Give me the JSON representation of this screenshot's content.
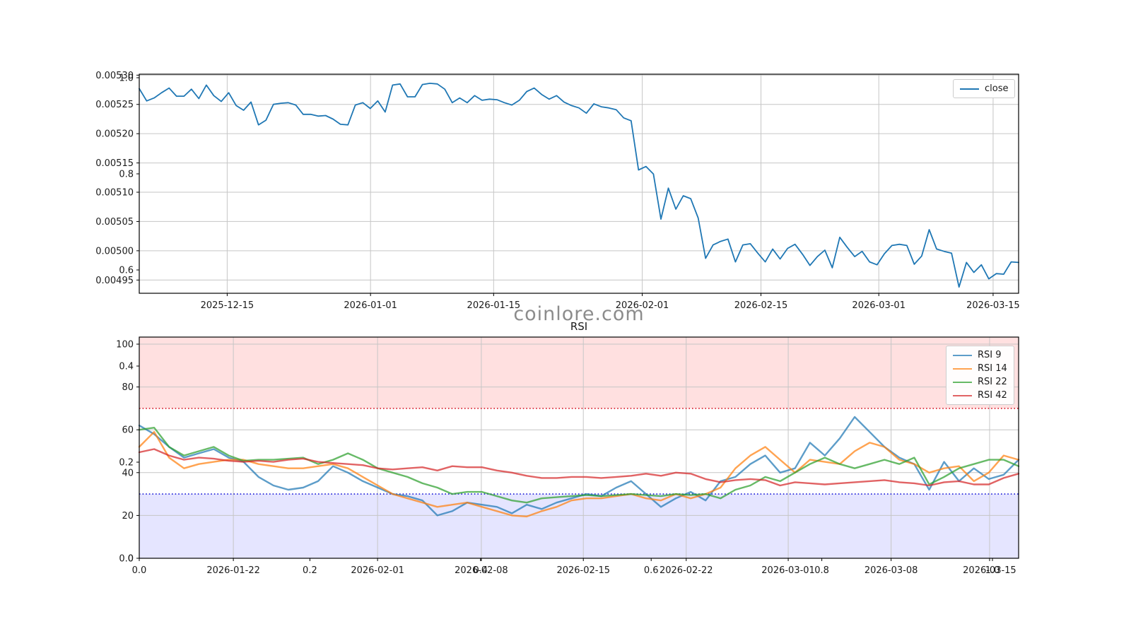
{
  "watermark": "coinlore.com",
  "overlay_axis": {
    "x_tick_labels": [
      "0.0",
      "0.2",
      "0.4",
      "0.6",
      "0.8",
      "1.0"
    ],
    "y_tick_labels": [
      "1.0",
      "0.8",
      "0.6",
      "0.4",
      "0.2",
      "0.0"
    ]
  },
  "chart_data": [
    {
      "type": "line",
      "name": "price-chart",
      "title": "",
      "x_start": "2025-12-05",
      "x_end": "2026-03-15",
      "grid": true,
      "legend_position": "upper right",
      "x_ticks": [
        {
          "label": "2025-12-15",
          "f": 0.1
        },
        {
          "label": "2026-01-01",
          "f": 0.263
        },
        {
          "label": "2026-01-15",
          "f": 0.403
        },
        {
          "label": "2026-02-01",
          "f": 0.572
        },
        {
          "label": "2026-02-15",
          "f": 0.707
        },
        {
          "label": "2026-03-01",
          "f": 0.841
        },
        {
          "label": "2026-03-15",
          "f": 0.971
        }
      ],
      "y_ticks": [
        {
          "label": "0.00530",
          "v": 0.0053
        },
        {
          "label": "0.00525",
          "v": 0.00525
        },
        {
          "label": "0.00520",
          "v": 0.0052
        },
        {
          "label": "0.00515",
          "v": 0.00515
        },
        {
          "label": "0.00510",
          "v": 0.0051
        },
        {
          "label": "0.00505",
          "v": 0.00505
        },
        {
          "label": "0.00500",
          "v": 0.005
        },
        {
          "label": "0.00495",
          "v": 0.00495
        }
      ],
      "ylim": [
        0.0049274,
        0.0053016
      ],
      "series": [
        {
          "name": "close",
          "color": "#1f77b4",
          "width": 1.8,
          "values": [
            0.005277,
            0.005256,
            0.005261,
            0.00527,
            0.005278,
            0.005264,
            0.005264,
            0.005276,
            0.00526,
            0.005283,
            0.005265,
            0.005255,
            0.00527,
            0.005248,
            0.00524,
            0.005254,
            0.005215,
            0.005223,
            0.00525,
            0.005252,
            0.005253,
            0.005249,
            0.005233,
            0.005233,
            0.00523,
            0.005231,
            0.005225,
            0.005216,
            0.005215,
            0.005249,
            0.005253,
            0.005243,
            0.005256,
            0.005237,
            0.005283,
            0.005285,
            0.005263,
            0.005263,
            0.005284,
            0.005286,
            0.005285,
            0.005276,
            0.005253,
            0.005261,
            0.005253,
            0.005265,
            0.005257,
            0.005259,
            0.005258,
            0.005253,
            0.005249,
            0.005257,
            0.005272,
            0.005278,
            0.005267,
            0.005259,
            0.005265,
            0.005254,
            0.005248,
            0.005244,
            0.005235,
            0.005251,
            0.005246,
            0.005244,
            0.005241,
            0.005227,
            0.005222,
            0.005138,
            0.005144,
            0.005131,
            0.005054,
            0.005107,
            0.005071,
            0.005094,
            0.005089,
            0.005056,
            0.004987,
            0.00501,
            0.005016,
            0.00502,
            0.004981,
            0.00501,
            0.005012,
            0.004996,
            0.004981,
            0.005003,
            0.004986,
            0.005004,
            0.005011,
            0.004994,
            0.004975,
            0.00499,
            0.005001,
            0.004971,
            0.005023,
            0.005006,
            0.00499,
            0.004999,
            0.004981,
            0.004976,
            0.004995,
            0.005009,
            0.005011,
            0.005009,
            0.004977,
            0.004991,
            0.005036,
            0.005003,
            0.004999,
            0.004996,
            0.004938,
            0.00498,
            0.004963,
            0.004976,
            0.004952,
            0.004961,
            0.00496,
            0.004981,
            0.00498
          ]
        }
      ]
    },
    {
      "type": "line",
      "name": "rsi-chart",
      "title": "RSI",
      "x_start": "2026-01-15",
      "x_end": "2026-03-15",
      "grid": true,
      "legend_position": "upper right",
      "x_ticks": [
        {
          "label": "2026-01-22",
          "f": 0.107
        },
        {
          "label": "2026-02-01",
          "f": 0.271
        },
        {
          "label": "2026-02-08",
          "f": 0.389
        },
        {
          "label": "2026-02-15",
          "f": 0.505
        },
        {
          "label": "2026-02-22",
          "f": 0.622
        },
        {
          "label": "2026-03-01",
          "f": 0.738
        },
        {
          "label": "2026-03-08",
          "f": 0.855
        },
        {
          "label": "2026-03-15",
          "f": 0.967
        }
      ],
      "y_ticks": [
        {
          "label": "100",
          "v": 100
        },
        {
          "label": "80",
          "v": 80
        },
        {
          "label": "60",
          "v": 60
        },
        {
          "label": "40",
          "v": 40
        },
        {
          "label": "20",
          "v": 20
        },
        {
          "label": "0",
          "v": 0
        }
      ],
      "ylim": [
        0,
        103.3
      ],
      "bands": [
        {
          "name": "overbought-zone",
          "from": 70,
          "to": 103.3,
          "color": "rgba(255,0,0,0.12)"
        },
        {
          "name": "oversold-zone",
          "from": 0,
          "to": 30,
          "color": "rgba(0,0,255,0.10)"
        }
      ],
      "hlines": [
        {
          "name": "overbought-threshold",
          "v": 70,
          "color": "#d81626"
        },
        {
          "name": "oversold-threshold",
          "v": 30,
          "color": "#1414d8"
        }
      ],
      "series": [
        {
          "name": "RSI 9",
          "color": "rgba(31,119,180,0.72)",
          "width": 2.4,
          "values": [
            62,
            58,
            52,
            47,
            49,
            51,
            47,
            45,
            38,
            34,
            32,
            33,
            36,
            43,
            40,
            36,
            33,
            30,
            29,
            27,
            20,
            22,
            26,
            25,
            24,
            21,
            25,
            23,
            26,
            28,
            30,
            29,
            33,
            36,
            30,
            24,
            28,
            31,
            27,
            36,
            38,
            44,
            48,
            40,
            42,
            54,
            48,
            56,
            66,
            59,
            52,
            47,
            44,
            32,
            45,
            36,
            42,
            37,
            39,
            46
          ]
        },
        {
          "name": "RSI 14",
          "color": "rgba(255,127,14,0.72)",
          "width": 2.4,
          "values": [
            52,
            59,
            47,
            42,
            44,
            45,
            46,
            46,
            44,
            43,
            42,
            42,
            43,
            44,
            42,
            38,
            34,
            30,
            28,
            26,
            24,
            25,
            26,
            24,
            22,
            20,
            19.5,
            22,
            24,
            27,
            28,
            28,
            29,
            30,
            28,
            27,
            30,
            28,
            30,
            33,
            42,
            48,
            52,
            46,
            40,
            46,
            45,
            44,
            50,
            54,
            52,
            46,
            44,
            40,
            42,
            43,
            36,
            40,
            48,
            46
          ]
        },
        {
          "name": "RSI 22",
          "color": "rgba(44,160,44,0.72)",
          "width": 2.4,
          "values": [
            60,
            61,
            52,
            48,
            50,
            52,
            48,
            45.5,
            46,
            46,
            46.5,
            47,
            44,
            46,
            49,
            46,
            42,
            40,
            38,
            35,
            33,
            30,
            31,
            31,
            29,
            27,
            26,
            28,
            28.5,
            29,
            29.5,
            29,
            29.5,
            30,
            29.5,
            29,
            30,
            29.5,
            30,
            28,
            32,
            34,
            38,
            36,
            40,
            44,
            47,
            44,
            42,
            44,
            46,
            44,
            47,
            34.5,
            38,
            42,
            44,
            46,
            46,
            43
          ]
        },
        {
          "name": "RSI 42",
          "color": "rgba(214,39,40,0.72)",
          "width": 2.4,
          "values": [
            49.5,
            51,
            48,
            46,
            47,
            46.5,
            45.5,
            45,
            45.5,
            45,
            46,
            46.5,
            45,
            44.5,
            44,
            43.5,
            42,
            41.5,
            42,
            42.5,
            41,
            43,
            42.5,
            42.5,
            41,
            40,
            38.5,
            37.5,
            37.5,
            38,
            38,
            37.5,
            38,
            38.5,
            39.5,
            38.5,
            40,
            39.5,
            37,
            35.5,
            36.5,
            37,
            36.5,
            34,
            35.5,
            35,
            34.5,
            35,
            35.5,
            36,
            36.5,
            35.5,
            35,
            34,
            35.5,
            36,
            34.5,
            34.5,
            37.5,
            39.5
          ]
        }
      ]
    }
  ]
}
